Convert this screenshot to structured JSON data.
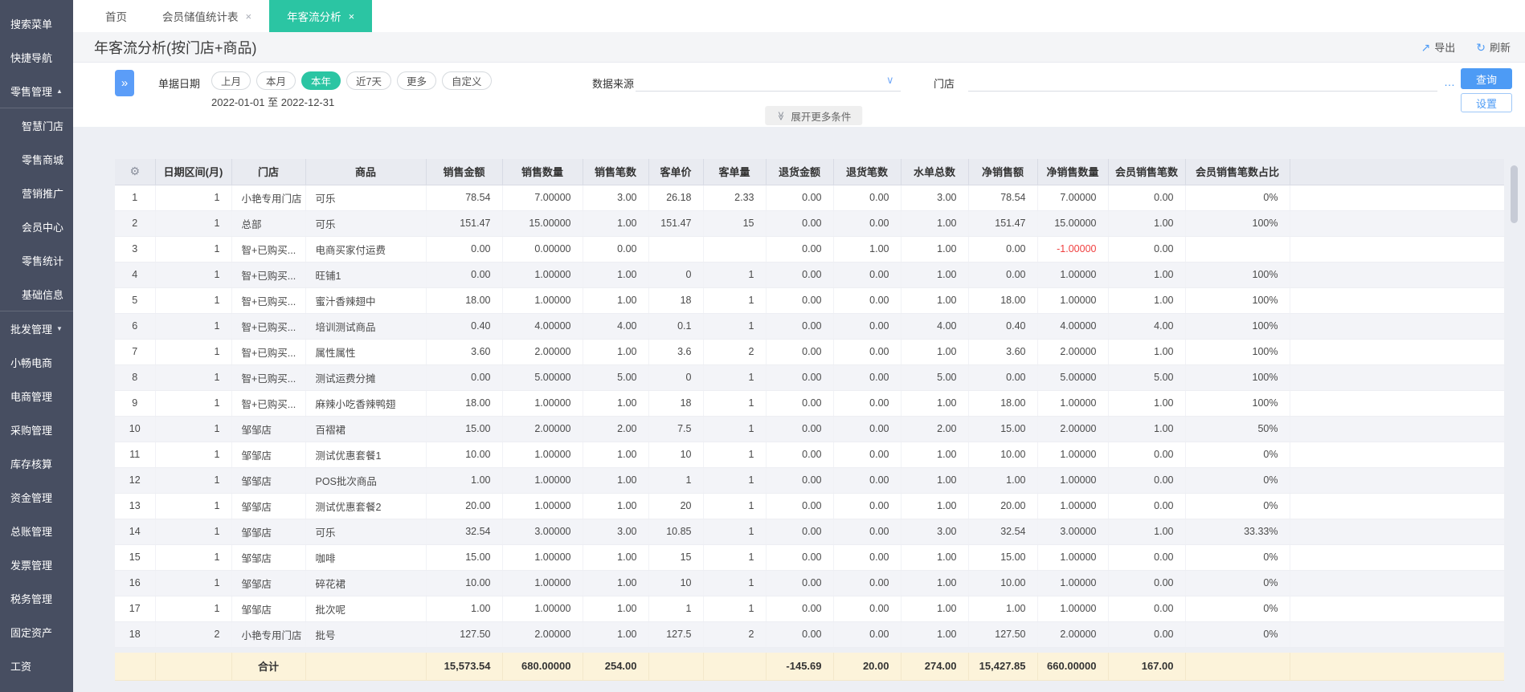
{
  "colors": {
    "brand_green": "#2bc5a3",
    "primary_blue": "#4d9bf5",
    "sidebar_bg": "#474e61",
    "negative_red": "#f03f3f",
    "total_row_bg": "#fcf3da"
  },
  "icons": {
    "gear": "⚙",
    "close": "×",
    "export": "↗",
    "refresh": "↻",
    "expand": "»",
    "chevron_down": "∨",
    "double_chevron": "≫",
    "ellipsis": "…",
    "arrow_up": "▲",
    "arrow_down": "▼"
  },
  "sidebar": {
    "items": [
      {
        "label": "搜索菜单",
        "type": "root"
      },
      {
        "label": "快捷导航",
        "type": "root"
      },
      {
        "label": "零售管理",
        "type": "root",
        "arrow": "up"
      },
      {
        "type": "divider"
      },
      {
        "label": "智慧门店",
        "type": "sub"
      },
      {
        "label": "零售商城",
        "type": "sub"
      },
      {
        "label": "营销推广",
        "type": "sub"
      },
      {
        "label": "会员中心",
        "type": "sub"
      },
      {
        "label": "零售统计",
        "type": "sub"
      },
      {
        "label": "基础信息",
        "type": "sub"
      },
      {
        "type": "divider"
      },
      {
        "label": "批发管理",
        "type": "root",
        "arrow": "down"
      },
      {
        "label": "小畅电商",
        "type": "root"
      },
      {
        "label": "电商管理",
        "type": "root"
      },
      {
        "label": "采购管理",
        "type": "root"
      },
      {
        "label": "库存核算",
        "type": "root"
      },
      {
        "label": "资金管理",
        "type": "root"
      },
      {
        "label": "总账管理",
        "type": "root"
      },
      {
        "label": "发票管理",
        "type": "root"
      },
      {
        "label": "税务管理",
        "type": "root"
      },
      {
        "label": "固定资产",
        "type": "root"
      },
      {
        "label": "工资",
        "type": "root"
      }
    ]
  },
  "tabs": [
    {
      "label": "首页",
      "closable": false,
      "active": false
    },
    {
      "label": "会员储值统计表",
      "closable": true,
      "active": false
    },
    {
      "label": "年客流分析",
      "closable": true,
      "active": true
    }
  ],
  "header": {
    "title": "年客流分析(按门店+商品)",
    "export_label": "导出",
    "refresh_label": "刷新"
  },
  "filters": {
    "date_label": "单据日期",
    "date_pills": [
      "上月",
      "本月",
      "本年",
      "近7天",
      "更多",
      "自定义"
    ],
    "active_pill": "本年",
    "date_range": "2022-01-01 至 2022-12-31",
    "source_label": "数据来源",
    "store_label": "门店",
    "more_label": "展开更多条件",
    "query_label": "查询",
    "settings_label": "设置"
  },
  "table": {
    "headers": [
      "",
      "日期区间(月)",
      "门店",
      "商品",
      "销售金额",
      "销售数量",
      "销售笔数",
      "客单价",
      "客单量",
      "退货金额",
      "退货笔数",
      "水单总数",
      "净销售额",
      "净销售数量",
      "会员销售笔数",
      "会员销售笔数占比",
      ""
    ],
    "rows": [
      [
        "1",
        "1",
        "小艳专用门店",
        "可乐",
        "78.54",
        "7.00000",
        "3.00",
        "26.18",
        "2.33",
        "0.00",
        "0.00",
        "3.00",
        "78.54",
        "7.00000",
        "0.00",
        "0%"
      ],
      [
        "2",
        "1",
        "总部",
        "可乐",
        "151.47",
        "15.00000",
        "1.00",
        "151.47",
        "15",
        "0.00",
        "0.00",
        "1.00",
        "151.47",
        "15.00000",
        "1.00",
        "100%"
      ],
      [
        "3",
        "1",
        "智+已购买...",
        "电商买家付运费",
        "0.00",
        "0.00000",
        "0.00",
        "",
        "",
        "0.00",
        "1.00",
        "1.00",
        "0.00",
        "-1.00000",
        "0.00",
        ""
      ],
      [
        "4",
        "1",
        "智+已购买...",
        "旺铺1",
        "0.00",
        "1.00000",
        "1.00",
        "0",
        "1",
        "0.00",
        "0.00",
        "1.00",
        "0.00",
        "1.00000",
        "1.00",
        "100%"
      ],
      [
        "5",
        "1",
        "智+已购买...",
        "蜜汁香辣翅中",
        "18.00",
        "1.00000",
        "1.00",
        "18",
        "1",
        "0.00",
        "0.00",
        "1.00",
        "18.00",
        "1.00000",
        "1.00",
        "100%"
      ],
      [
        "6",
        "1",
        "智+已购买...",
        "培训测试商品",
        "0.40",
        "4.00000",
        "4.00",
        "0.1",
        "1",
        "0.00",
        "0.00",
        "4.00",
        "0.40",
        "4.00000",
        "4.00",
        "100%"
      ],
      [
        "7",
        "1",
        "智+已购买...",
        "属性属性",
        "3.60",
        "2.00000",
        "1.00",
        "3.6",
        "2",
        "0.00",
        "0.00",
        "1.00",
        "3.60",
        "2.00000",
        "1.00",
        "100%"
      ],
      [
        "8",
        "1",
        "智+已购买...",
        "测试运费分摊",
        "0.00",
        "5.00000",
        "5.00",
        "0",
        "1",
        "0.00",
        "0.00",
        "5.00",
        "0.00",
        "5.00000",
        "5.00",
        "100%"
      ],
      [
        "9",
        "1",
        "智+已购买...",
        "麻辣小吃香辣鸭翅",
        "18.00",
        "1.00000",
        "1.00",
        "18",
        "1",
        "0.00",
        "0.00",
        "1.00",
        "18.00",
        "1.00000",
        "1.00",
        "100%"
      ],
      [
        "10",
        "1",
        "邹邹店",
        "百褶裙",
        "15.00",
        "2.00000",
        "2.00",
        "7.5",
        "1",
        "0.00",
        "0.00",
        "2.00",
        "15.00",
        "2.00000",
        "1.00",
        "50%"
      ],
      [
        "11",
        "1",
        "邹邹店",
        "测试优惠套餐1",
        "10.00",
        "1.00000",
        "1.00",
        "10",
        "1",
        "0.00",
        "0.00",
        "1.00",
        "10.00",
        "1.00000",
        "0.00",
        "0%"
      ],
      [
        "12",
        "1",
        "邹邹店",
        "POS批次商品",
        "1.00",
        "1.00000",
        "1.00",
        "1",
        "1",
        "0.00",
        "0.00",
        "1.00",
        "1.00",
        "1.00000",
        "0.00",
        "0%"
      ],
      [
        "13",
        "1",
        "邹邹店",
        "测试优惠套餐2",
        "20.00",
        "1.00000",
        "1.00",
        "20",
        "1",
        "0.00",
        "0.00",
        "1.00",
        "20.00",
        "1.00000",
        "0.00",
        "0%"
      ],
      [
        "14",
        "1",
        "邹邹店",
        "可乐",
        "32.54",
        "3.00000",
        "3.00",
        "10.85",
        "1",
        "0.00",
        "0.00",
        "3.00",
        "32.54",
        "3.00000",
        "1.00",
        "33.33%"
      ],
      [
        "15",
        "1",
        "邹邹店",
        "咖啡",
        "15.00",
        "1.00000",
        "1.00",
        "15",
        "1",
        "0.00",
        "0.00",
        "1.00",
        "15.00",
        "1.00000",
        "0.00",
        "0%"
      ],
      [
        "16",
        "1",
        "邹邹店",
        "碎花裙",
        "10.00",
        "1.00000",
        "1.00",
        "10",
        "1",
        "0.00",
        "0.00",
        "1.00",
        "10.00",
        "1.00000",
        "0.00",
        "0%"
      ],
      [
        "17",
        "1",
        "邹邹店",
        "批次呢",
        "1.00",
        "1.00000",
        "1.00",
        "1",
        "1",
        "0.00",
        "0.00",
        "1.00",
        "1.00",
        "1.00000",
        "0.00",
        "0%"
      ],
      [
        "18",
        "2",
        "小艳专用门店",
        "批号",
        "127.50",
        "2.00000",
        "1.00",
        "127.5",
        "2",
        "0.00",
        "0.00",
        "1.00",
        "127.50",
        "2.00000",
        "0.00",
        "0%"
      ]
    ],
    "total": {
      "cells": [
        "",
        "",
        "合计",
        "",
        "15,573.54",
        "680.00000",
        "254.00",
        "",
        "",
        "-145.69",
        "20.00",
        "274.00",
        "15,427.85",
        "660.00000",
        "167.00",
        ""
      ]
    }
  }
}
